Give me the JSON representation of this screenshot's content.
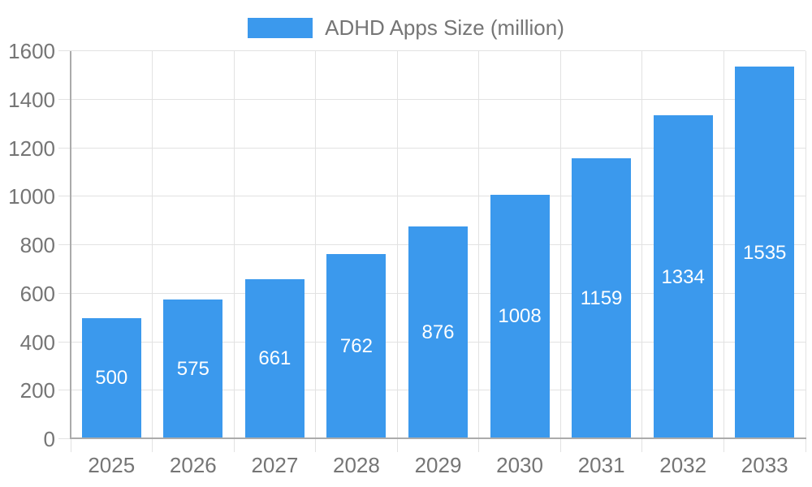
{
  "legend": {
    "label": "ADHD Apps Size (million)"
  },
  "chart_data": {
    "type": "bar",
    "title": "ADHD Apps Size (million)",
    "series_name": "ADHD Apps Size (million)",
    "categories": [
      "2025",
      "2026",
      "2027",
      "2028",
      "2029",
      "2030",
      "2031",
      "2032",
      "2033"
    ],
    "values": [
      500,
      575,
      661,
      762,
      876,
      1008,
      1159,
      1334,
      1535
    ],
    "xlabel": "",
    "ylabel": "",
    "ylim": [
      0,
      1600
    ],
    "y_ticks": [
      0,
      200,
      400,
      600,
      800,
      1000,
      1200,
      1400,
      1600
    ],
    "grid": true,
    "legend_position": "top-center",
    "bar_labels_shown": true,
    "colors": {
      "bar": "#3b99ed",
      "bar_label": "#ffffff",
      "axis_line": "#ababab",
      "grid_line": "#e2e2e2",
      "tick_label": "#757575"
    }
  }
}
